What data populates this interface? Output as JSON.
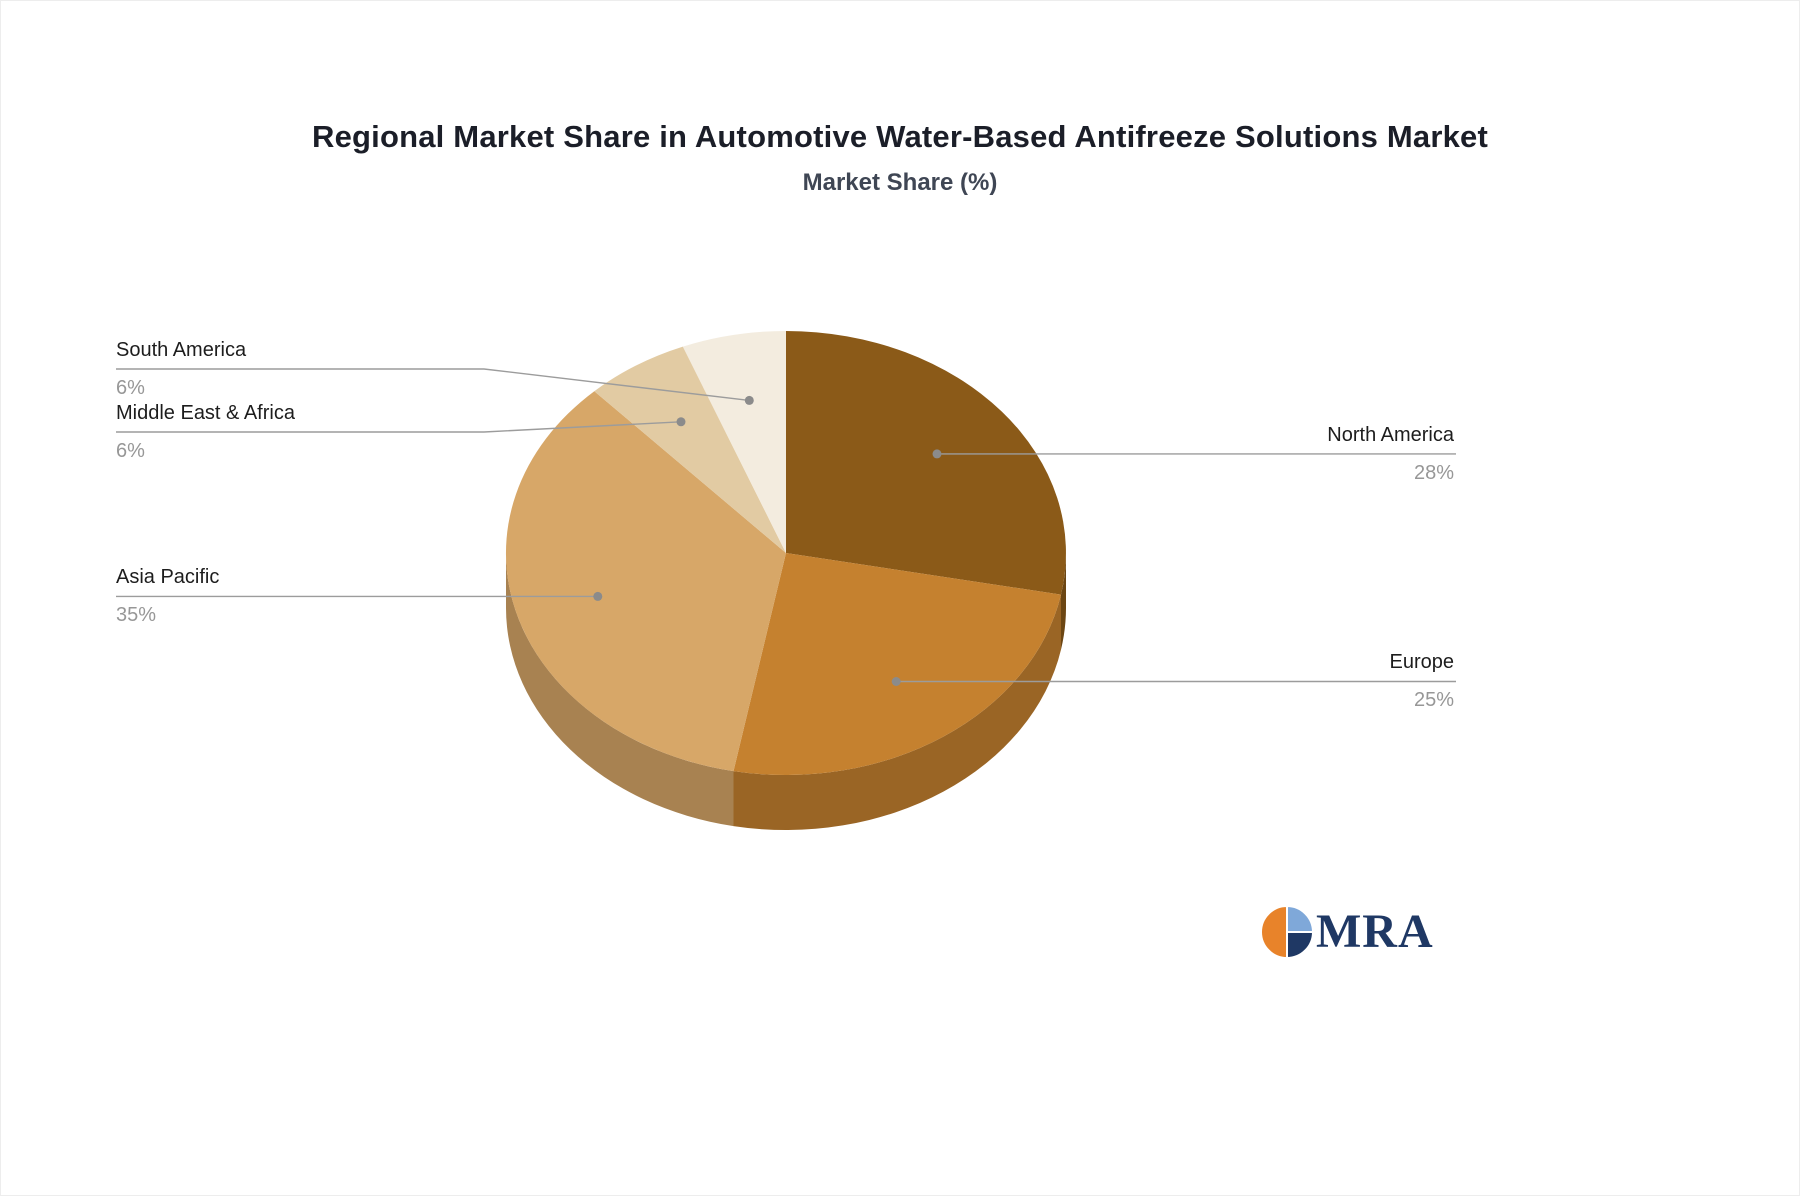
{
  "page": {
    "title": "Regional Market Share in Automotive Water-Based Antifreeze Solutions Market",
    "subtitle": "Market Share (%)"
  },
  "logo": {
    "text": "MRA",
    "colors": {
      "orange": "#e8832a",
      "navy": "#1f3864",
      "lightblue": "#7fa8d9"
    }
  },
  "chart_data": {
    "type": "pie",
    "title": "Regional Market Share in Automotive Water-Based Antifreeze Solutions Market",
    "subtitle": "Market Share (%)",
    "unit": "%",
    "direction": "clockwise",
    "start_angle_deg": 0,
    "legend_position": "none",
    "labels_style": "outside-leader-lines",
    "effect": "3d-depth",
    "slices": [
      {
        "label": "North America",
        "value": 28,
        "display": "28%",
        "color": "#8b5a18"
      },
      {
        "label": "Europe",
        "value": 25,
        "display": "25%",
        "color": "#c5812f"
      },
      {
        "label": "Asia Pacific",
        "value": 35,
        "display": "35%",
        "color": "#d7a768"
      },
      {
        "label": "Middle East & Africa",
        "value": 6,
        "display": "6%",
        "color": "#e2cba3"
      },
      {
        "label": "South America",
        "value": 6,
        "display": "6%",
        "color": "#f3ecdf"
      }
    ]
  }
}
